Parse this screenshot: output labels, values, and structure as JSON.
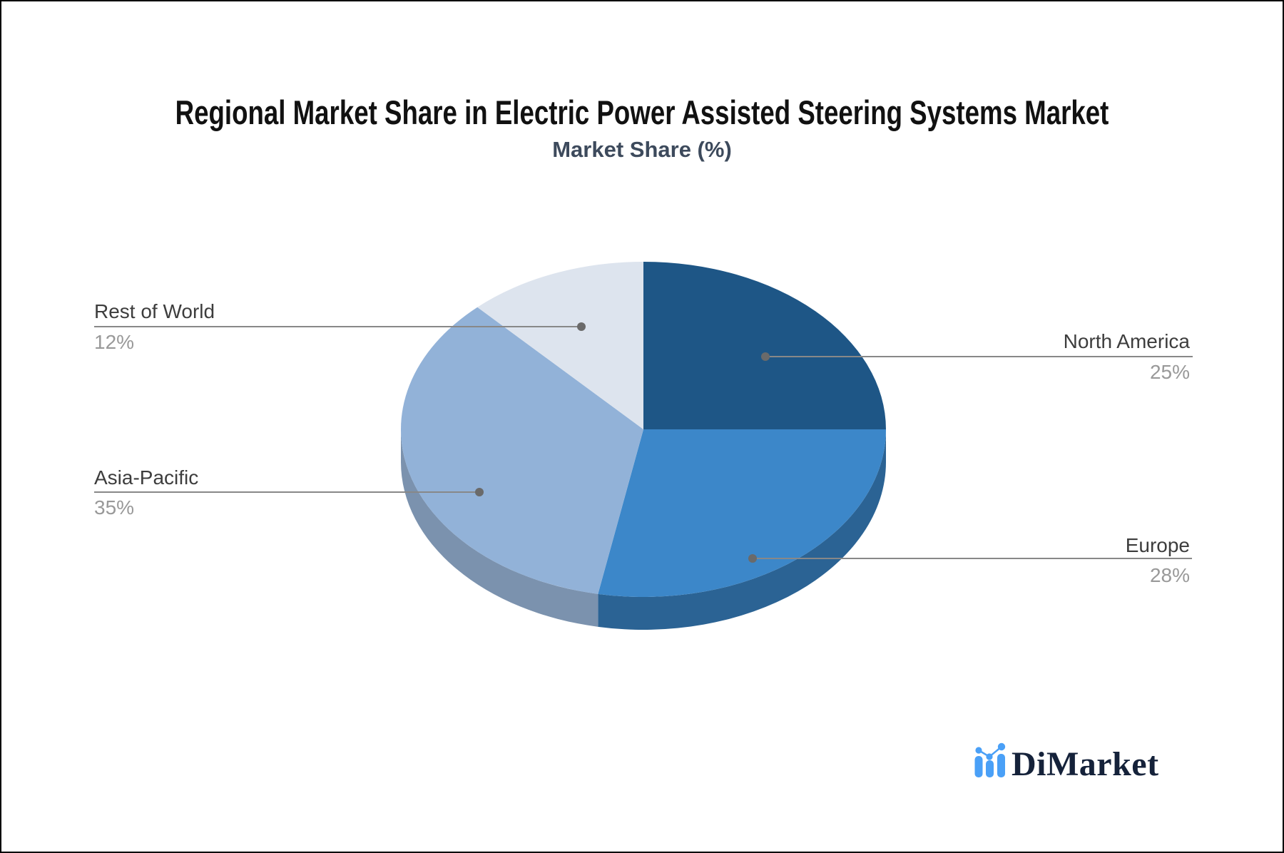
{
  "header": {
    "title": "Regional Market Share in Electric Power Assisted Steering Systems Market",
    "subtitle": "Market Share (%)",
    "title_color": "#111111",
    "subtitle_color": "#3d4a5c"
  },
  "chart_data": {
    "type": "pie",
    "style": "3d-pie",
    "title": "Regional Market Share in Electric Power Assisted Steering Systems Market",
    "subtitle": "Market Share (%)",
    "unit": "%",
    "start_angle_deg": 0,
    "direction": "clockwise",
    "categories": [
      "North America",
      "Europe",
      "Asia-Pacific",
      "Rest of World"
    ],
    "values": [
      25,
      28,
      35,
      12
    ],
    "slices": [
      {
        "label": "North America",
        "value": 25,
        "pct_label": "25%",
        "color": "#1e5686",
        "side_color": "#174a75",
        "callout_side": "right"
      },
      {
        "label": "Europe",
        "value": 28,
        "pct_label": "28%",
        "color": "#3c87c9",
        "side_color": "#2b6394",
        "callout_side": "right"
      },
      {
        "label": "Asia-Pacific",
        "value": 35,
        "pct_label": "35%",
        "color": "#92b2d8",
        "side_color": "#7b92ae",
        "callout_side": "left"
      },
      {
        "label": "Rest of World",
        "value": 12,
        "pct_label": "12%",
        "color": "#dde4ee",
        "side_color": "#c2cbd9",
        "callout_side": "left"
      }
    ],
    "legend": "none",
    "callout_line_color": "#888888",
    "callout_dot_color": "#6a6a6a",
    "label_color": "#3d3d3d",
    "pct_color": "#999999"
  },
  "branding": {
    "logo_text": "DiMarket",
    "logo_icon": "bar-chart-trend-icon",
    "logo_text_color": "#15223a",
    "logo_icon_color": "#4aa0f7"
  }
}
